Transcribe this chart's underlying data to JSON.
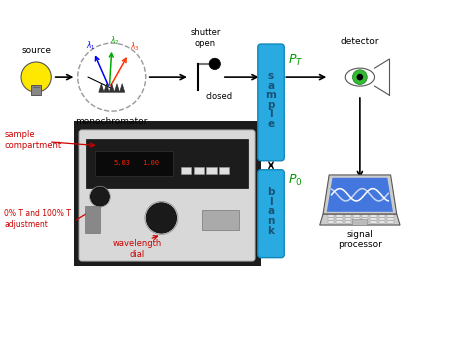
{
  "bg_color": "#ffffff",
  "fig_w": 4.74,
  "fig_h": 3.48,
  "labels": {
    "source": "source",
    "monochromator": "monochromator",
    "shutter_open": "shutter\nopen",
    "closed": "closed",
    "detector": "detector",
    "signal_processor": "signal\nprocessor",
    "sample": "s\na\nm\np\nl\ne",
    "blank": "b\nl\na\nn\nk",
    "PT": "$P_T$",
    "P0": "$P_0$",
    "sample_compartment": "sample\ncompartment",
    "zero_adj": "0% T and 100% T\nadjustment",
    "wavelength_dial": "wavelength\ndial",
    "lambda1": "$\\lambda_1$",
    "lambda2": "$\\lambda_2$",
    "lambda3": "$\\lambda_3$"
  },
  "colors": {
    "blue_tube": "#29ABE2",
    "red_text": "#CC0000",
    "green_text": "#009900",
    "lambda1": "#0000FF",
    "lambda2": "#00AA00",
    "lambda3": "#FF3300",
    "bulb_yellow": "#FFE800",
    "eye_green": "#33BB33",
    "laptop_blue": "#4477DD",
    "dashed_circle": "#999999",
    "dark_gray": "#333333",
    "light_gray": "#DDDDDD",
    "mid_gray": "#AAAAAA"
  }
}
